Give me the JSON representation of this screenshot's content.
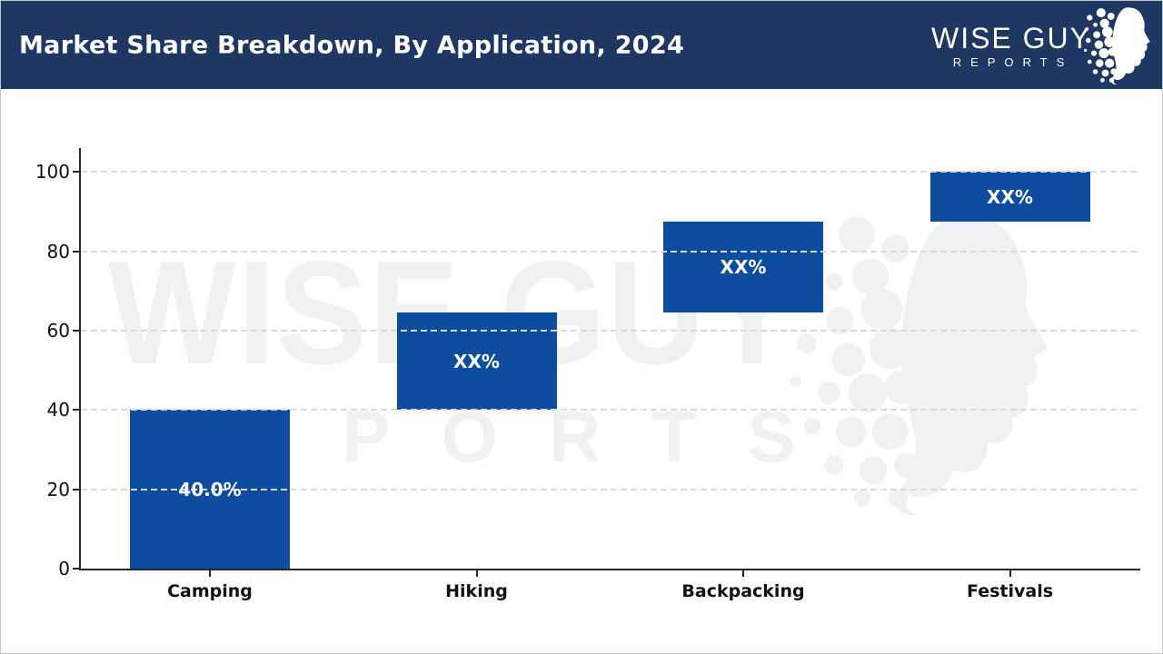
{
  "header": {
    "title": "Market Share Breakdown, By Application, 2024",
    "background_color": "#1f3763",
    "logo": {
      "wordmark": "WISE GUY",
      "subtext": "REPORTS"
    }
  },
  "watermark": {
    "wordmark": "WISE GUY",
    "subtext": "REPORTS"
  },
  "chart_data": {
    "type": "bar",
    "subtype": "waterfall",
    "title": "Market Share Breakdown, By Application, 2024",
    "categories": [
      "Camping",
      "Hiking",
      "Backpacking",
      "Festivals"
    ],
    "series": [
      {
        "name": "Market share (%)",
        "segments": [
          {
            "category": "Camping",
            "start": 0,
            "end": 40,
            "label": "40.0%"
          },
          {
            "category": "Hiking",
            "start": 40,
            "end": 64.5,
            "label": "XX%"
          },
          {
            "category": "Backpacking",
            "start": 64.5,
            "end": 87.5,
            "label": "XX%"
          },
          {
            "category": "Festivals",
            "start": 87.5,
            "end": 100,
            "label": "XX%"
          }
        ]
      }
    ],
    "xlabel": "",
    "ylabel": "",
    "ylim": [
      0,
      106
    ],
    "yticks": [
      0,
      20,
      40,
      60,
      80,
      100
    ],
    "grid": "horizontal-dashed",
    "legend": "none",
    "bar_color": "#0d4c9e",
    "bar_label_color": "#ffffff",
    "axis_color": "#262626",
    "gridline_color": "#d9d9d9"
  }
}
